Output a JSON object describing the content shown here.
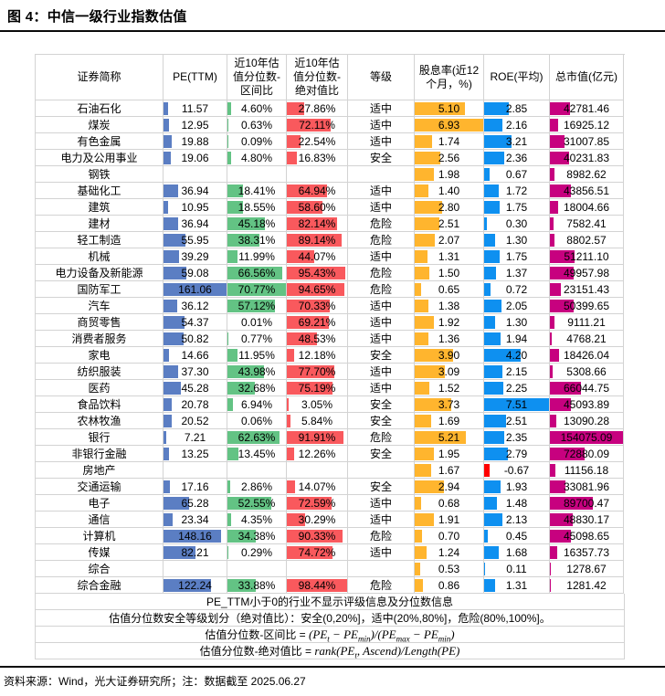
{
  "title": "图 4：中信一级行业指数估值",
  "source_note": "资料来源：Wind，光大证券研究所；注：数据截至 2025.06.27",
  "chart_data": {
    "type": "table",
    "columns": [
      "证券简称",
      "PE(TTM)",
      "近10年估值分位数-区间比",
      "近10年估值分位数-绝对值比",
      "等级",
      "股息率(近12个月，%)",
      "ROE(平均)",
      "总市值(亿元)"
    ],
    "rows": [
      {
        "name": "石油石化",
        "pe": "11.57",
        "range": "4.60%",
        "abs": "27.86%",
        "grade": "适中",
        "div": "5.10",
        "roe": "2.85",
        "cap": "42781.46"
      },
      {
        "name": "煤炭",
        "pe": "12.95",
        "range": "0.63%",
        "abs": "72.11%",
        "grade": "适中",
        "div": "6.93",
        "roe": "2.16",
        "cap": "16925.12"
      },
      {
        "name": "有色金属",
        "pe": "19.88",
        "range": "0.09%",
        "abs": "22.54%",
        "grade": "适中",
        "div": "1.74",
        "roe": "3.21",
        "cap": "31007.85"
      },
      {
        "name": "电力及公用事业",
        "pe": "19.06",
        "range": "4.80%",
        "abs": "16.83%",
        "grade": "安全",
        "div": "2.56",
        "roe": "2.36",
        "cap": "40231.83"
      },
      {
        "name": "钢铁",
        "pe": "",
        "range": "",
        "abs": "",
        "grade": "",
        "div": "1.98",
        "roe": "0.67",
        "cap": "8982.62"
      },
      {
        "name": "基础化工",
        "pe": "36.94",
        "range": "18.41%",
        "abs": "64.94%",
        "grade": "适中",
        "div": "1.40",
        "roe": "1.72",
        "cap": "43856.51"
      },
      {
        "name": "建筑",
        "pe": "10.95",
        "range": "18.55%",
        "abs": "58.60%",
        "grade": "适中",
        "div": "2.80",
        "roe": "1.75",
        "cap": "18004.66"
      },
      {
        "name": "建材",
        "pe": "36.94",
        "range": "45.18%",
        "abs": "82.14%",
        "grade": "危险",
        "div": "2.51",
        "roe": "0.30",
        "cap": "7582.41"
      },
      {
        "name": "轻工制造",
        "pe": "55.95",
        "range": "38.31%",
        "abs": "89.14%",
        "grade": "危险",
        "div": "2.07",
        "roe": "1.30",
        "cap": "8802.57"
      },
      {
        "name": "机械",
        "pe": "39.29",
        "range": "11.99%",
        "abs": "44.07%",
        "grade": "适中",
        "div": "1.31",
        "roe": "1.75",
        "cap": "51211.10"
      },
      {
        "name": "电力设备及新能源",
        "pe": "59.08",
        "range": "66.56%",
        "abs": "95.43%",
        "grade": "危险",
        "div": "1.50",
        "roe": "1.37",
        "cap": "49957.98"
      },
      {
        "name": "国防军工",
        "pe": "161.06",
        "range": "70.77%",
        "abs": "94.65%",
        "grade": "危险",
        "div": "0.65",
        "roe": "0.72",
        "cap": "23151.43"
      },
      {
        "name": "汽车",
        "pe": "36.12",
        "range": "57.12%",
        "abs": "70.33%",
        "grade": "适中",
        "div": "1.38",
        "roe": "2.05",
        "cap": "50399.65"
      },
      {
        "name": "商贸零售",
        "pe": "54.37",
        "range": "0.01%",
        "abs": "69.21%",
        "grade": "适中",
        "div": "1.92",
        "roe": "1.30",
        "cap": "9111.21"
      },
      {
        "name": "消费者服务",
        "pe": "50.82",
        "range": "0.77%",
        "abs": "48.53%",
        "grade": "适中",
        "div": "1.36",
        "roe": "1.94",
        "cap": "4768.21"
      },
      {
        "name": "家电",
        "pe": "14.66",
        "range": "11.95%",
        "abs": "12.18%",
        "grade": "安全",
        "div": "3.90",
        "roe": "4.20",
        "cap": "18426.04"
      },
      {
        "name": "纺织服装",
        "pe": "37.30",
        "range": "43.98%",
        "abs": "77.70%",
        "grade": "适中",
        "div": "3.09",
        "roe": "2.15",
        "cap": "5308.66"
      },
      {
        "name": "医药",
        "pe": "45.28",
        "range": "32.68%",
        "abs": "75.19%",
        "grade": "适中",
        "div": "1.52",
        "roe": "2.25",
        "cap": "66044.75"
      },
      {
        "name": "食品饮料",
        "pe": "20.78",
        "range": "6.94%",
        "abs": "3.05%",
        "grade": "安全",
        "div": "3.73",
        "roe": "7.51",
        "cap": "45093.89"
      },
      {
        "name": "农林牧渔",
        "pe": "20.52",
        "range": "0.06%",
        "abs": "5.84%",
        "grade": "安全",
        "div": "1.69",
        "roe": "2.51",
        "cap": "13090.28"
      },
      {
        "name": "银行",
        "pe": "7.21",
        "range": "62.63%",
        "abs": "91.91%",
        "grade": "危险",
        "div": "5.21",
        "roe": "2.35",
        "cap": "154075.09"
      },
      {
        "name": "非银行金融",
        "pe": "13.25",
        "range": "13.45%",
        "abs": "12.26%",
        "grade": "安全",
        "div": "1.95",
        "roe": "2.79",
        "cap": "72880.09"
      },
      {
        "name": "房地产",
        "pe": "",
        "range": "",
        "abs": "",
        "grade": "",
        "div": "1.67",
        "roe": "-0.67",
        "cap": "11156.18"
      },
      {
        "name": "交通运输",
        "pe": "17.16",
        "range": "2.86%",
        "abs": "14.07%",
        "grade": "安全",
        "div": "2.94",
        "roe": "1.93",
        "cap": "33081.96"
      },
      {
        "name": "电子",
        "pe": "65.28",
        "range": "52.55%",
        "abs": "72.59%",
        "grade": "适中",
        "div": "0.68",
        "roe": "1.48",
        "cap": "89700.47"
      },
      {
        "name": "通信",
        "pe": "23.34",
        "range": "4.35%",
        "abs": "30.29%",
        "grade": "适中",
        "div": "1.91",
        "roe": "2.13",
        "cap": "48830.17"
      },
      {
        "name": "计算机",
        "pe": "148.16",
        "range": "34.38%",
        "abs": "90.33%",
        "grade": "危险",
        "div": "0.70",
        "roe": "0.45",
        "cap": "45098.65"
      },
      {
        "name": "传媒",
        "pe": "82.21",
        "range": "0.29%",
        "abs": "74.72%",
        "grade": "适中",
        "div": "1.24",
        "roe": "1.68",
        "cap": "16357.73"
      },
      {
        "name": "综合",
        "pe": "",
        "range": "",
        "abs": "",
        "grade": "",
        "div": "0.53",
        "roe": "0.11",
        "cap": "1278.67"
      },
      {
        "name": "综合金融",
        "pe": "122.24",
        "range": "33.88%",
        "abs": "98.44%",
        "grade": "危险",
        "div": "0.86",
        "roe": "1.31",
        "cap": "1281.42"
      }
    ],
    "notes": [
      "PE_TTM小于0的行业不显示评级信息及分位数信息",
      "估值分位数安全等级划分（绝对值比）：安全(0,20%]，适中(20%,80%]，危险(80%,100%]。"
    ],
    "formulas": [
      {
        "label": "估值分位数-区间比 = ",
        "parts": [
          {
            "t": "("
          },
          {
            "t": "PE"
          },
          {
            "t": "t",
            "s": "sub"
          },
          {
            "t": " − "
          },
          {
            "t": "PE"
          },
          {
            "t": "min",
            "s": "sub"
          },
          {
            "t": ")/("
          },
          {
            "t": "PE"
          },
          {
            "t": "max",
            "s": "sub"
          },
          {
            "t": " − "
          },
          {
            "t": "PE"
          },
          {
            "t": "min",
            "s": "sub"
          },
          {
            "t": ")"
          }
        ]
      },
      {
        "label": "估值分位数-绝对值比 = ",
        "parts": [
          {
            "t": "rank("
          },
          {
            "t": "PE"
          },
          {
            "t": "t",
            "s": "sub"
          },
          {
            "t": ", "
          },
          {
            "t": "Ascend"
          },
          {
            "t": ")/"
          },
          {
            "t": "Length"
          },
          {
            "t": "("
          },
          {
            "t": "PE"
          },
          {
            "t": ")"
          }
        ]
      }
    ],
    "bar_colors": {
      "pe": "#5b7ec3",
      "range": "#63c384",
      "abs": "#f9595d",
      "div": "#ffb52e",
      "roe": "#0e90f0",
      "roe_negative": "#ff0000",
      "cap": "#c7017f"
    },
    "bar_scale_max": {
      "pe": 161.06,
      "range": 70.77,
      "abs": 98.44,
      "div": 6.93,
      "roe": 7.51,
      "cap": 154075.09
    },
    "layout": {
      "grid": true,
      "bars_inline": true
    }
  }
}
